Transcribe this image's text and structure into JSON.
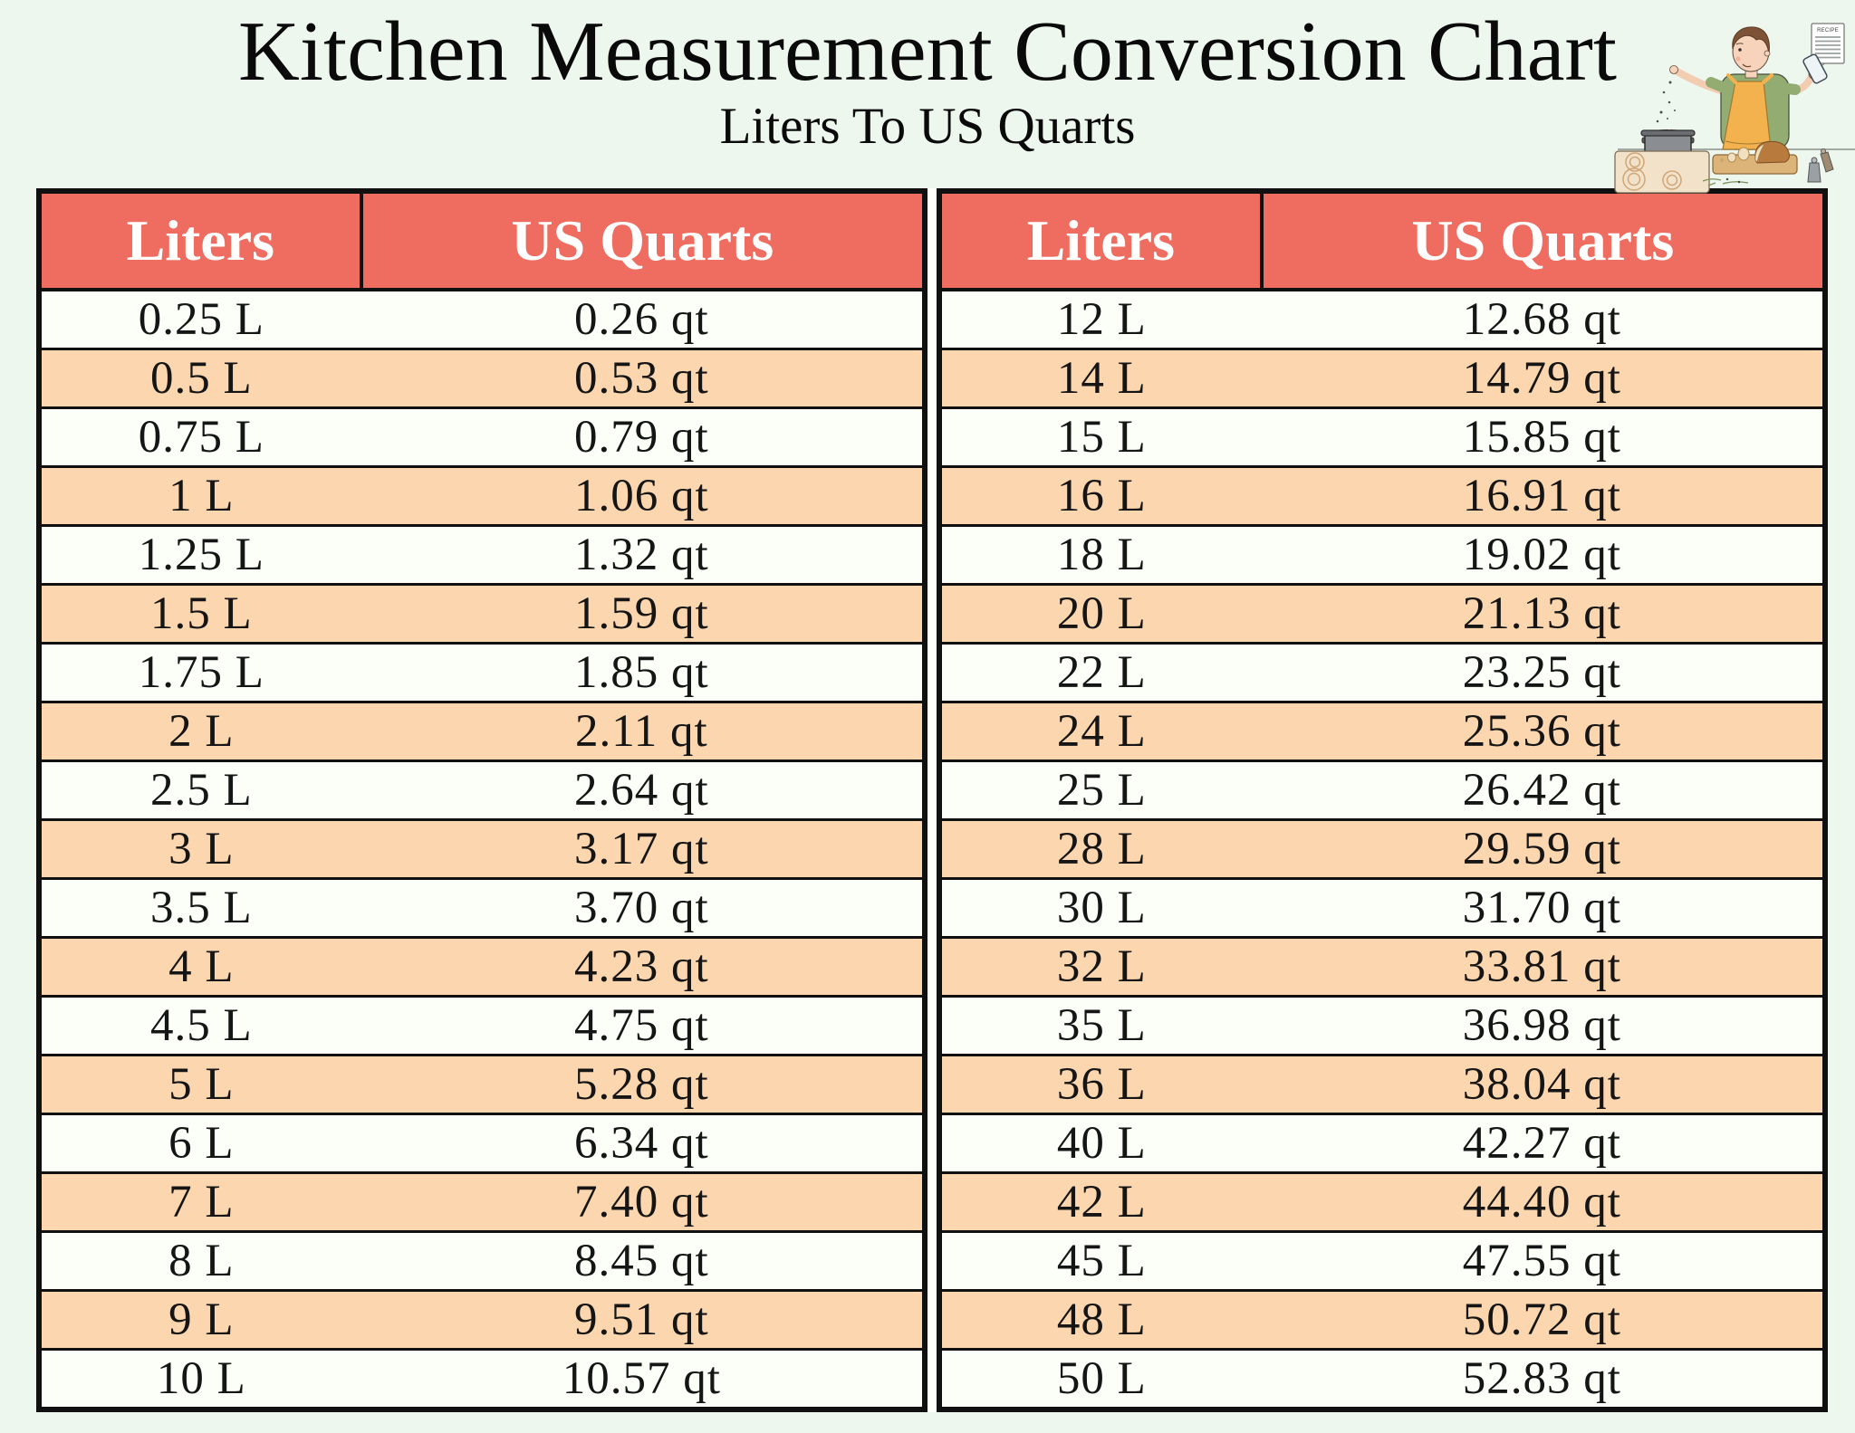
{
  "header": {
    "title": "Kitchen Measurement Conversion Chart",
    "subtitle": "Liters To US Quarts"
  },
  "illustration": {
    "bubble_label": "RECIPE"
  },
  "colors": {
    "page_background": "#edf7ee",
    "table_header_background": "#ee6d60",
    "table_header_text": "#ffffff",
    "row_white": "#fcfef8",
    "row_peach": "#fcd6ae",
    "table_border": "#101010",
    "apron_orange": "#f4b24e",
    "shirt_green": "#93ac72"
  },
  "chart_data": {
    "type": "table",
    "title": "Kitchen Measurement Conversion Chart",
    "subtitle": "Liters To US Quarts",
    "columns": [
      "Liters",
      "US Quarts"
    ],
    "tables": [
      {
        "id": "left",
        "rows": [
          [
            "0.25 L",
            "0.26 qt"
          ],
          [
            "0.5 L",
            "0.53 qt"
          ],
          [
            "0.75 L",
            "0.79 qt"
          ],
          [
            "1 L",
            "1.06 qt"
          ],
          [
            "1.25 L",
            "1.32 qt"
          ],
          [
            "1.5 L",
            "1.59 qt"
          ],
          [
            "1.75 L",
            "1.85 qt"
          ],
          [
            "2 L",
            "2.11 qt"
          ],
          [
            "2.5 L",
            "2.64 qt"
          ],
          [
            "3 L",
            "3.17 qt"
          ],
          [
            "3.5 L",
            "3.70 qt"
          ],
          [
            "4 L",
            "4.23 qt"
          ],
          [
            "4.5 L",
            "4.75 qt"
          ],
          [
            "5 L",
            "5.28 qt"
          ],
          [
            "6 L",
            "6.34 qt"
          ],
          [
            "7 L",
            "7.40 qt"
          ],
          [
            "8 L",
            "8.45 qt"
          ],
          [
            "9 L",
            "9.51 qt"
          ],
          [
            "10 L",
            "10.57 qt"
          ]
        ]
      },
      {
        "id": "right",
        "rows": [
          [
            "12 L",
            "12.68 qt"
          ],
          [
            "14 L",
            "14.79 qt"
          ],
          [
            "15 L",
            "15.85 qt"
          ],
          [
            "16 L",
            "16.91 qt"
          ],
          [
            "18 L",
            "19.02 qt"
          ],
          [
            "20 L",
            "21.13 qt"
          ],
          [
            "22 L",
            "23.25 qt"
          ],
          [
            "24 L",
            "25.36 qt"
          ],
          [
            "25 L",
            "26.42 qt"
          ],
          [
            "28 L",
            "29.59 qt"
          ],
          [
            "30 L",
            "31.70 qt"
          ],
          [
            "32 L",
            "33.81 qt"
          ],
          [
            "35 L",
            "36.98 qt"
          ],
          [
            "36 L",
            "38.04 qt"
          ],
          [
            "40 L",
            "42.27 qt"
          ],
          [
            "42 L",
            "44.40 qt"
          ],
          [
            "45 L",
            "47.55 qt"
          ],
          [
            "48 L",
            "50.72 qt"
          ],
          [
            "50 L",
            "52.83 qt"
          ]
        ]
      }
    ]
  }
}
